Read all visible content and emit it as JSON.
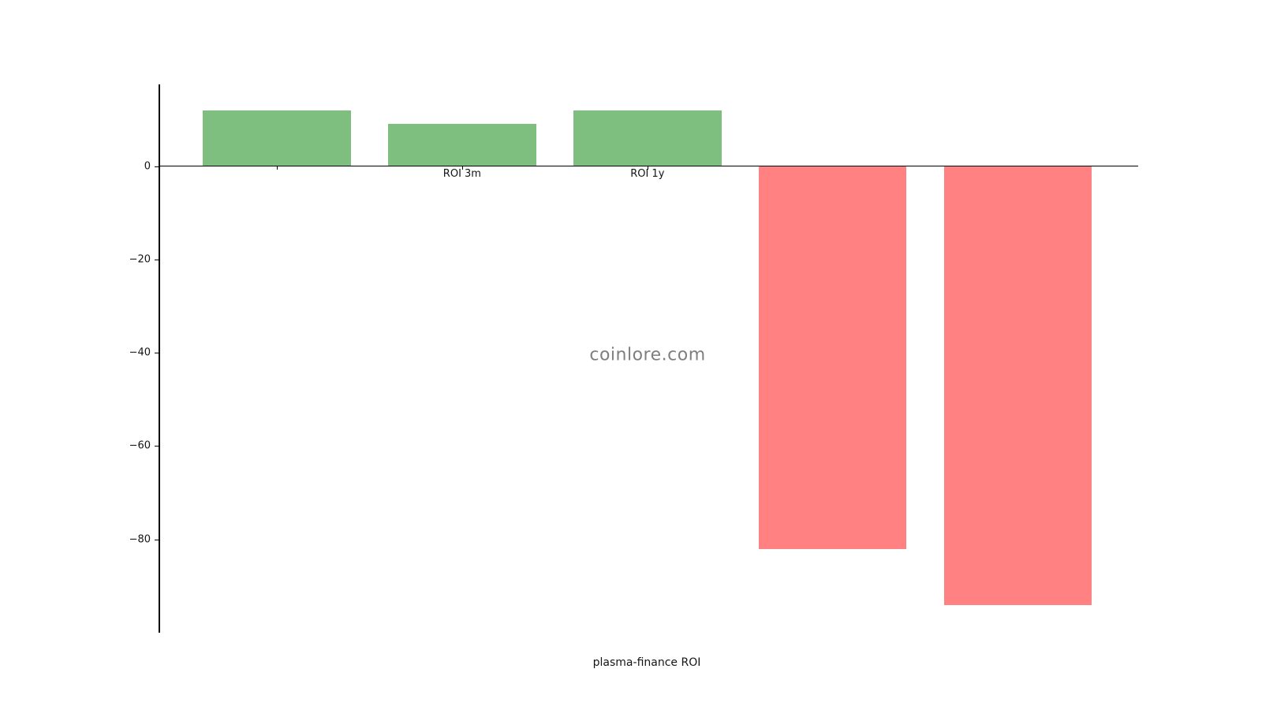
{
  "page": {
    "background": "#ffffff"
  },
  "watermark": {
    "text": "coinlore.com",
    "color": "#7f7f7f"
  },
  "chart_data": {
    "type": "bar",
    "title": "",
    "xlabel": "plasma-finance ROI",
    "ylabel": "",
    "categories": [
      "",
      "ROI 3m",
      "ROI 1y",
      "",
      ""
    ],
    "values": [
      12,
      9,
      12,
      -82,
      -94
    ],
    "colors": {
      "positive": "#7ebe7e",
      "negative": "#ff8181",
      "axis": "#000000",
      "tick_text": "#151515"
    },
    "y_ticks": [
      0,
      -20,
      -40,
      -60,
      -80
    ],
    "y_tick_labels": [
      "0",
      "−20",
      "−40",
      "−60",
      "−80"
    ],
    "ylim": [
      -100,
      17.5
    ],
    "grid": false,
    "legend": "none"
  }
}
